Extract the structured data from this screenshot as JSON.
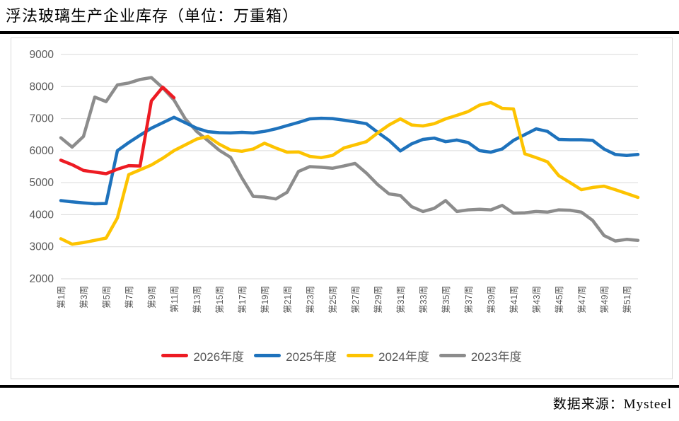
{
  "page": {
    "title": "浮法玻璃生产企业库存（单位：万重箱）",
    "source_note": "数据来源：Mysteel"
  },
  "chart_data": {
    "type": "line",
    "title": "浮法玻璃生产企业库存",
    "unit": "万重箱",
    "xlabel": "",
    "ylabel": "",
    "ylim": [
      2000,
      9000
    ],
    "y_ticks": [
      2000,
      3000,
      4000,
      5000,
      6000,
      7000,
      8000,
      9000
    ],
    "weeks": 52,
    "x_tick_labels": [
      "第1周",
      "第3周",
      "第5周",
      "第7周",
      "第9周",
      "第11周",
      "第13周",
      "第15周",
      "第17周",
      "第19周",
      "第21周",
      "第23周",
      "第25周",
      "第27周",
      "第29周",
      "第31周",
      "第33周",
      "第35周",
      "第37周",
      "第39周",
      "第41周",
      "第43周",
      "第45周",
      "第47周",
      "第49周",
      "第51周"
    ],
    "grid": "horizontal",
    "legend_position": "bottom",
    "axis_text_color": "#595959",
    "grid_color": "#d9d9d9",
    "series": [
      {
        "name": "2026年度",
        "color": "#ed1b23",
        "values": [
          5700,
          5560,
          5380,
          5330,
          5280,
          5420,
          5530,
          5520,
          7550,
          7980,
          7650
        ]
      },
      {
        "name": "2025年度",
        "color": "#1e72bc",
        "values": [
          4440,
          4400,
          4370,
          4340,
          4350,
          6000,
          6250,
          6480,
          6700,
          6870,
          7040,
          6870,
          6700,
          6590,
          6560,
          6550,
          6570,
          6550,
          6600,
          6680,
          6780,
          6880,
          6990,
          7010,
          7000,
          6950,
          6900,
          6840,
          6570,
          6320,
          5990,
          6210,
          6350,
          6390,
          6280,
          6330,
          6250,
          6000,
          5950,
          6050,
          6320,
          6500,
          6680,
          6600,
          6350,
          6340,
          6340,
          6320,
          6050,
          5880,
          5850,
          5880
        ]
      },
      {
        "name": "2024年度",
        "color": "#fdc300",
        "values": [
          3250,
          3080,
          3130,
          3200,
          3270,
          3900,
          5250,
          5400,
          5550,
          5760,
          6000,
          6180,
          6360,
          6440,
          6200,
          6020,
          5980,
          6050,
          6230,
          6080,
          5950,
          5960,
          5820,
          5780,
          5850,
          6080,
          6180,
          6280,
          6550,
          6800,
          6990,
          6800,
          6770,
          6840,
          6990,
          7100,
          7220,
          7420,
          7500,
          7320,
          7300,
          5900,
          5780,
          5650,
          5220,
          5000,
          4780,
          4850,
          4890,
          4780,
          4660,
          4540
        ]
      },
      {
        "name": "2023年度",
        "color": "#8c8c8c",
        "values": [
          6400,
          6110,
          6440,
          7670,
          7530,
          8050,
          8110,
          8220,
          8280,
          7960,
          7580,
          6990,
          6600,
          6310,
          6010,
          5790,
          5150,
          4570,
          4550,
          4490,
          4700,
          5350,
          5500,
          5480,
          5450,
          5520,
          5600,
          5300,
          4940,
          4650,
          4600,
          4250,
          4100,
          4200,
          4440,
          4100,
          4150,
          4170,
          4150,
          4290,
          4050,
          4060,
          4100,
          4080,
          4150,
          4140,
          4080,
          3820,
          3350,
          3180,
          3230,
          3200
        ]
      }
    ]
  }
}
